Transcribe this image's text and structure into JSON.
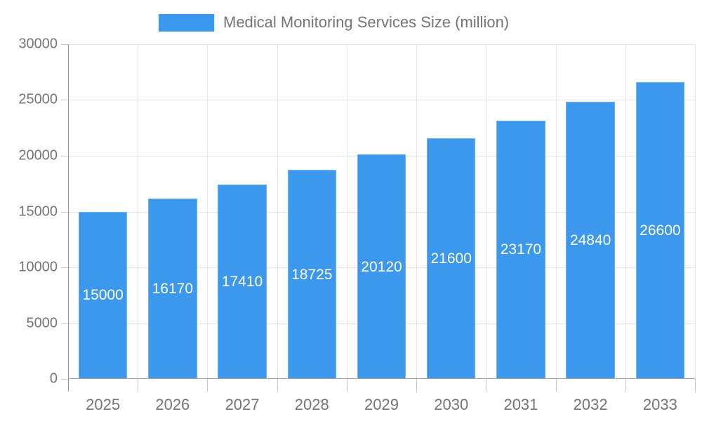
{
  "legend": {
    "label": "Medical Monitoring Services Size (million)",
    "swatch_color": "#3b98ec"
  },
  "chart_data": {
    "type": "bar",
    "title": "Medical Monitoring Services Size (million)",
    "categories": [
      "2025",
      "2026",
      "2027",
      "2028",
      "2029",
      "2030",
      "2031",
      "2032",
      "2033"
    ],
    "values": [
      15000,
      16170,
      17410,
      18725,
      20120,
      21600,
      23170,
      24840,
      26600
    ],
    "series": [
      {
        "name": "Medical Monitoring Services Size (million)",
        "values": [
          15000,
          16170,
          17410,
          18725,
          20120,
          21600,
          23170,
          24840,
          26600
        ]
      }
    ],
    "xlabel": "",
    "ylabel": "",
    "ylim": [
      0,
      30000
    ],
    "yticks": [
      0,
      5000,
      10000,
      15000,
      20000,
      25000,
      30000
    ],
    "bar_color": "#3b98ec",
    "bar_label_color": "#ffffff",
    "axis_text_color": "#757575",
    "grid": true,
    "legend_position": "top",
    "bar_width_fraction": 0.7
  }
}
